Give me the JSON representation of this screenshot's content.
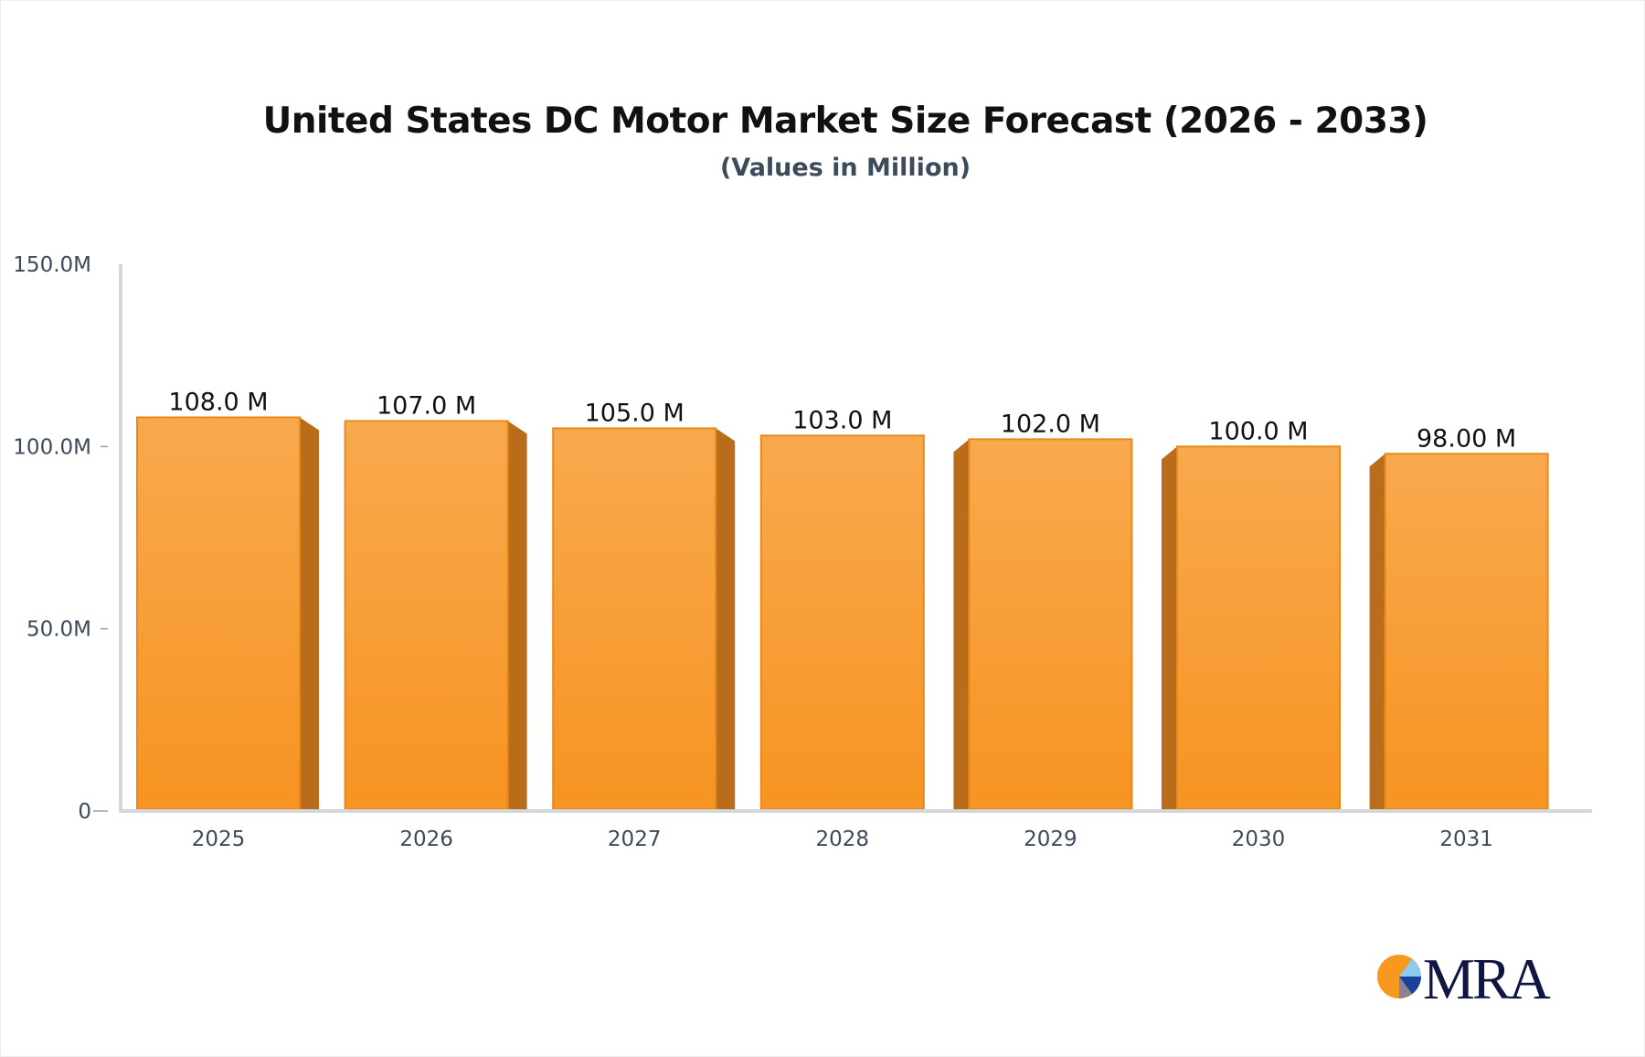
{
  "chart_data": {
    "type": "bar",
    "title": "United States DC Motor Market Size Forecast (2026 - 2033)",
    "subtitle": "(Values in Million)",
    "categories": [
      "2025",
      "2026",
      "2027",
      "2028",
      "2029",
      "2030",
      "2031"
    ],
    "values": [
      108.0,
      107.0,
      105.0,
      103.0,
      102.0,
      100.0,
      98.0
    ],
    "data_labels": [
      "108.0 M",
      "107.0 M",
      "105.0 M",
      "103.0 M",
      "102.0 M",
      "100.0 M",
      "98.00 M"
    ],
    "xlabel": "",
    "ylabel": "",
    "ylim": [
      0,
      150
    ],
    "y_ticks": [
      0,
      50,
      100,
      150
    ],
    "y_tick_labels": [
      "0",
      "50.0M",
      "100.0M",
      "150.0M"
    ],
    "grid": false,
    "legend": "none",
    "bar_color": "#f7a13c",
    "bar_side_color": "#b96c1a"
  },
  "logo": {
    "text": "MRA"
  }
}
